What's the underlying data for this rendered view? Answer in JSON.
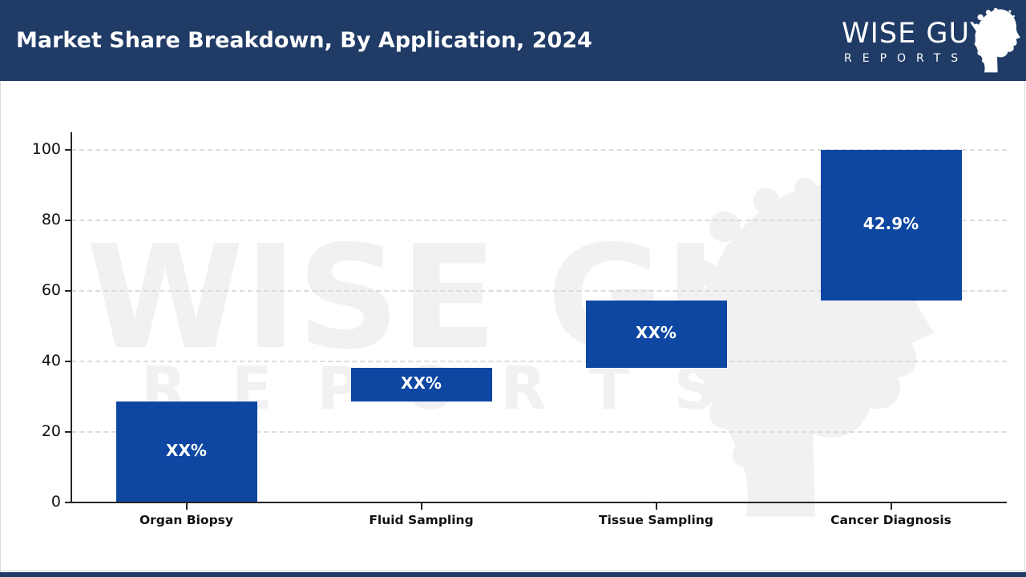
{
  "header": {
    "title": "Market Share Breakdown, By Application, 2024",
    "logo": {
      "line1": "WISE GUY",
      "line2": "REPORTS"
    }
  },
  "watermark": {
    "line1": "WISE GUY",
    "line2": "REPORTS"
  },
  "chart_data": {
    "type": "bar",
    "subtype": "floating-waterfall",
    "title": "Market Share Breakdown, By Application, 2024",
    "categories": [
      "Organ Biopsy",
      "Fluid Sampling",
      "Tissue Sampling",
      "Cancer Diagnosis"
    ],
    "values": [
      28.6,
      9.5,
      19.0,
      42.9
    ],
    "cumulative_starts": [
      0,
      28.6,
      38.1,
      57.1
    ],
    "bar_labels": [
      "XX%",
      "XX%",
      "XX%",
      "42.9%"
    ],
    "yticks": [
      0,
      20,
      40,
      60,
      80,
      100
    ],
    "ylim": [
      0,
      100
    ],
    "xlabel": "",
    "ylabel": "",
    "legend": "none",
    "grid": "horizontal-dashed"
  },
  "colors": {
    "header_bg": "#1f3b66",
    "footer_bg": "#1f3b66",
    "bar": "#0d47a1",
    "bar_label": "#ffffff",
    "grid": "#dcdcdc",
    "axis": "#262626",
    "tick_text": "#111111",
    "watermark": "#f1f1f4"
  }
}
